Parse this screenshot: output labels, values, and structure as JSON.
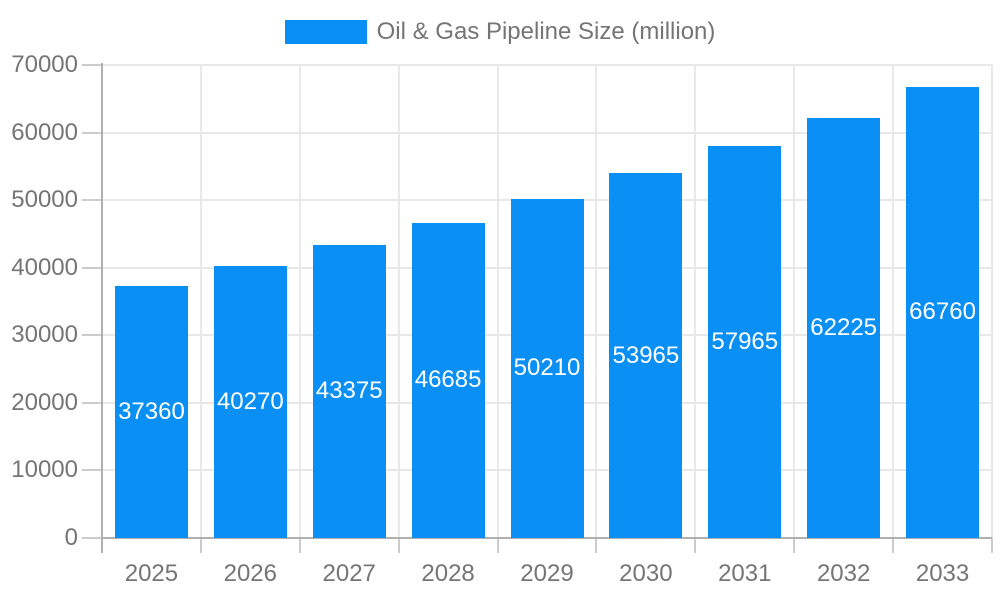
{
  "chart_data": {
    "type": "bar",
    "title": "Oil & Gas Pipeline Size (million)",
    "categories": [
      "2025",
      "2026",
      "2027",
      "2028",
      "2029",
      "2030",
      "2031",
      "2032",
      "2033"
    ],
    "values": [
      37360,
      40270,
      43375,
      46685,
      50210,
      53965,
      57965,
      62225,
      66760
    ],
    "xlabel": "",
    "ylabel": "",
    "ylim": [
      0,
      70000
    ],
    "ytick_step": 10000,
    "ytick_labels": [
      "0",
      "10000",
      "20000",
      "30000",
      "40000",
      "50000",
      "60000",
      "70000"
    ],
    "grid": true,
    "legend_position": "top",
    "value_labels": "inside-center",
    "colors": {
      "bar": "#0a8ff5",
      "bar_label": "#ffffff",
      "axis_text": "#757575",
      "grid": "#e8e8e8",
      "axis_line": "#b0b0b0",
      "tick": "#cccccc",
      "background": "#ffffff"
    }
  }
}
